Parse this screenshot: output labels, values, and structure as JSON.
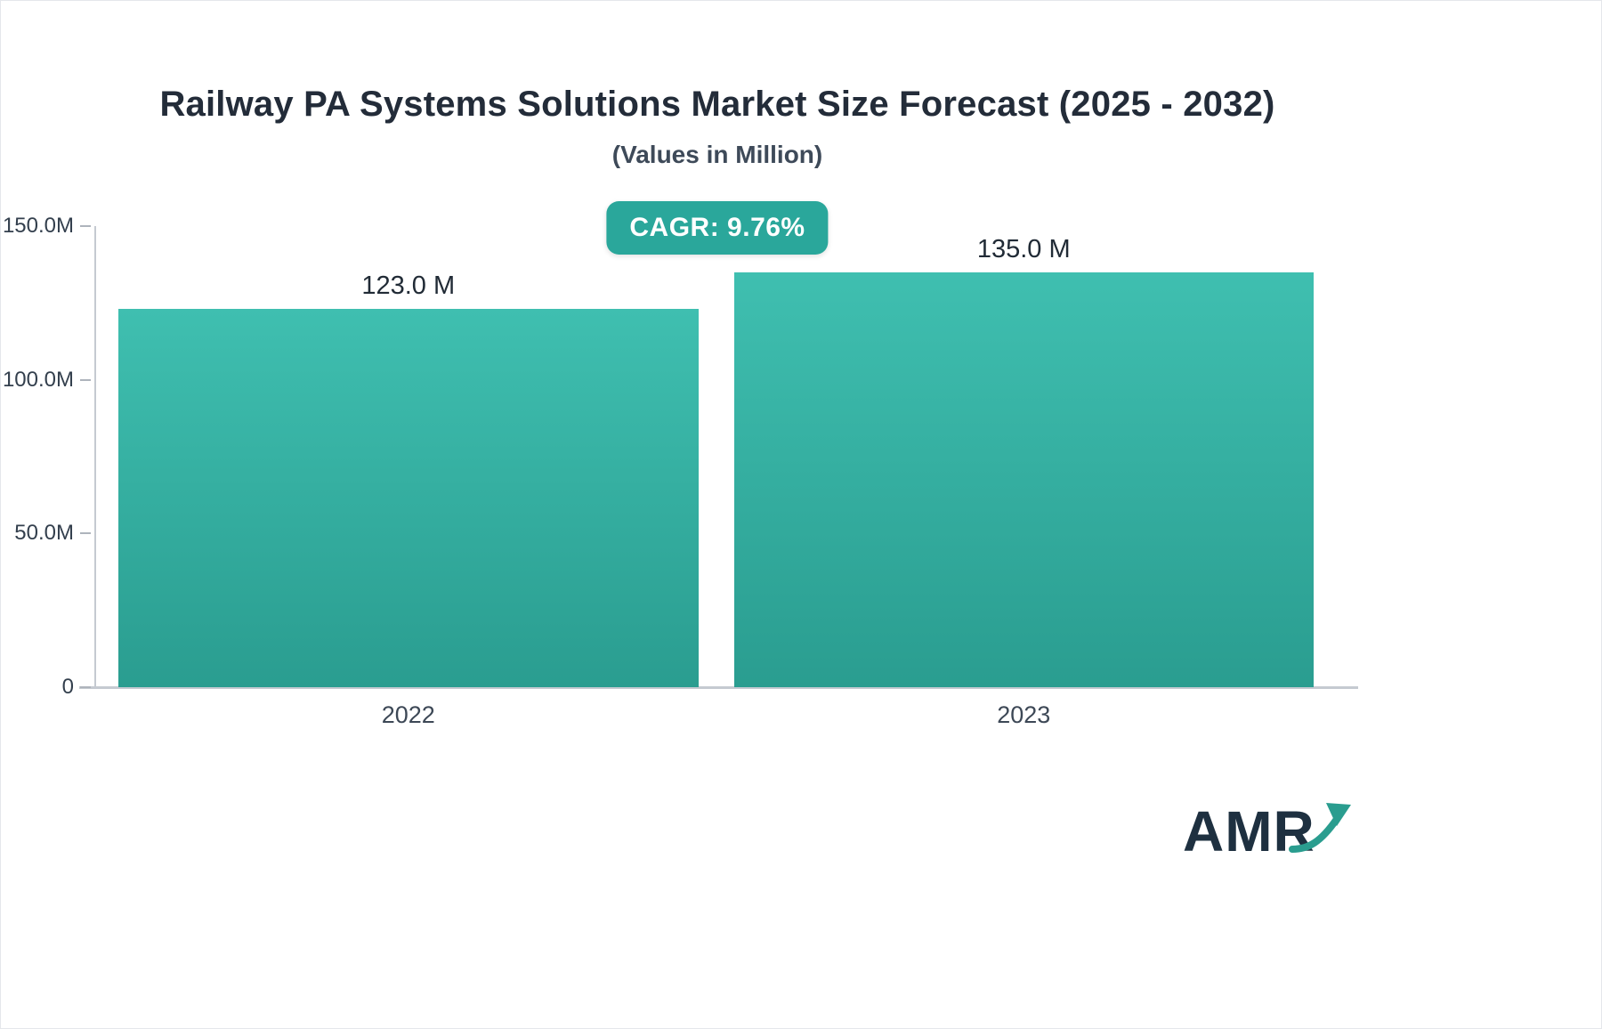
{
  "title": "Railway PA Systems Solutions Market Size Forecast (2025 - 2032)",
  "subtitle": "(Values in Million)",
  "cagr_badge": "CAGR: 9.76%",
  "logo_text": "AMR",
  "colors": {
    "bar_gradient_top": "#3fbfb0",
    "bar_gradient_bottom": "#2a9d90",
    "badge_background": "#2aa79b",
    "badge_text": "#ffffff",
    "title_text": "#232c39",
    "axis_line": "#c5cad1",
    "tick_text": "#333f4d",
    "logo_text": "#1e3040",
    "logo_arrow": "#2a9d8f"
  },
  "chart_data": {
    "type": "bar",
    "title": "Railway PA Systems Solutions Market Size Forecast (2025 - 2032)",
    "subtitle": "(Values in Million)",
    "annotation": "CAGR: 9.76%",
    "categories": [
      "2022",
      "2023"
    ],
    "values": [
      123.0,
      135.0
    ],
    "value_labels": [
      "123.0 M",
      "135.0 M"
    ],
    "xlabel": "",
    "ylabel": "",
    "ylim": [
      0,
      150
    ],
    "yticks": [
      {
        "value": 0,
        "label": "0"
      },
      {
        "value": 50,
        "label": "50.0M"
      },
      {
        "value": 100,
        "label": "100.0M"
      },
      {
        "value": 150,
        "label": "150.0M"
      }
    ],
    "grid": false,
    "legend": false
  }
}
